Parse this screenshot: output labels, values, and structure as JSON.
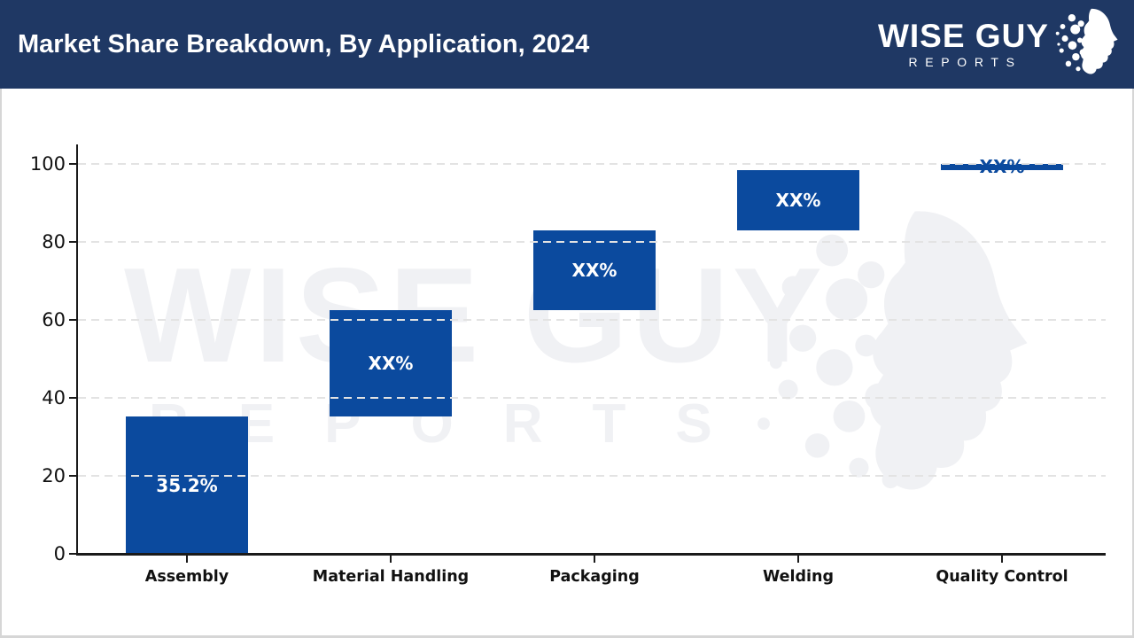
{
  "header": {
    "title": "Market Share Breakdown, By Application, 2024",
    "bg_color": "#1f3864",
    "logo": {
      "line1": "WISE GUY",
      "line2": "REPORTS"
    }
  },
  "watermark": {
    "line1": "WISE GUY",
    "line2": "REPORTS"
  },
  "chart_data": {
    "type": "bar",
    "subtype": "waterfall",
    "title": "Market Share Breakdown, By Application, 2024",
    "xlabel": "",
    "ylabel": "",
    "categories": [
      "Assembly",
      "Material Handling",
      "Packaging",
      "Welding",
      "Quality Control"
    ],
    "bars": [
      {
        "category": "Assembly",
        "start": 0,
        "end": 35.2,
        "label": "35.2%",
        "label_color": "#ffffff"
      },
      {
        "category": "Material Handling",
        "start": 35.2,
        "end": 62.5,
        "label": "XX%",
        "label_color": "#ffffff"
      },
      {
        "category": "Packaging",
        "start": 62.5,
        "end": 83.0,
        "label": "XX%",
        "label_color": "#ffffff"
      },
      {
        "category": "Welding",
        "start": 83.0,
        "end": 98.5,
        "label": "XX%",
        "label_color": "#ffffff"
      },
      {
        "category": "Quality Control",
        "start": 98.5,
        "end": 100.0,
        "label": "XX%",
        "label_color": "#0b4a9e"
      }
    ],
    "bar_color": "#0b4a9e",
    "yticks": [
      0,
      20,
      40,
      60,
      80,
      100
    ],
    "ylim": [
      0,
      105
    ],
    "grid": "horizontal dashed",
    "legend": "none"
  }
}
